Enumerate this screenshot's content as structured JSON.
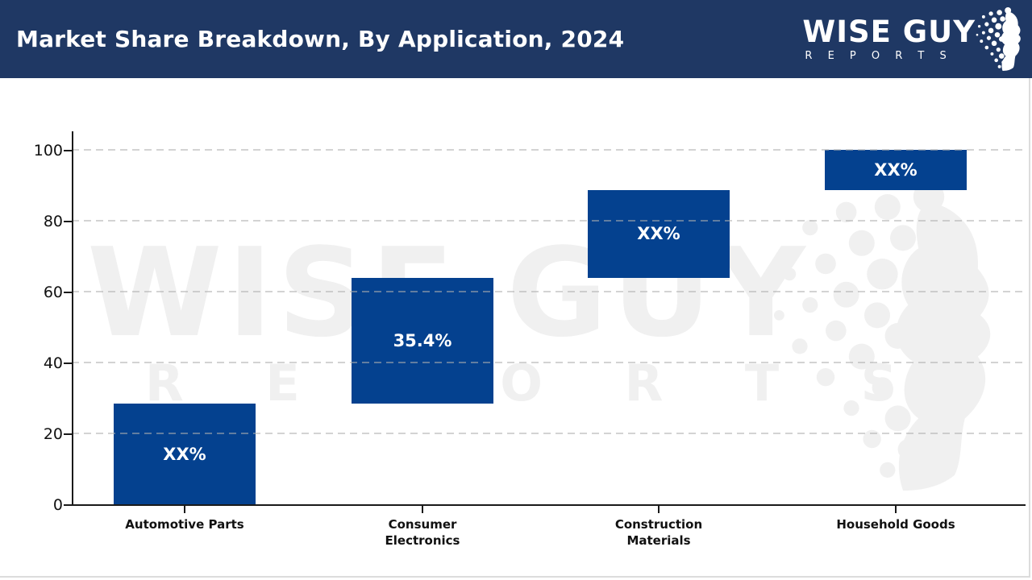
{
  "header": {
    "title": "Market Share Breakdown, By Application, 2024",
    "brand": {
      "line1": "WISE GUY",
      "line2": "R E P O R T S"
    }
  },
  "watermark": {
    "line1": "WISE GUY",
    "line2": "R E P O R T S"
  },
  "chart_data": {
    "type": "bar",
    "subtype": "waterfall-floating-bars",
    "title": "Market Share Breakdown, By Application, 2024",
    "xlabel": "",
    "ylabel": "",
    "ylim": [
      0,
      100
    ],
    "yticks": [
      0,
      20,
      40,
      60,
      80,
      100
    ],
    "grid": "horizontal dashed",
    "legend": "none",
    "categories": [
      "Automotive Parts",
      "Consumer Electronics",
      "Construction Materials",
      "Household Goods"
    ],
    "categories_display": [
      "Automotive Parts",
      "Consumer\nElectronics",
      "Construction\nMaterials",
      "Household Goods"
    ],
    "segments": [
      {
        "category": "Automotive Parts",
        "label": "XX%",
        "start": 0,
        "end": 28.4
      },
      {
        "category": "Consumer Electronics",
        "label": "35.4%",
        "start": 28.4,
        "end": 63.8
      },
      {
        "category": "Construction Materials",
        "label": "XX%",
        "start": 63.8,
        "end": 88.7
      },
      {
        "category": "Household Goods",
        "label": "XX%",
        "start": 88.7,
        "end": 100
      }
    ]
  },
  "colors": {
    "header_bg": "#1f3864",
    "header_text": "#ffffff",
    "bar": "#04418f",
    "bar_label": "#ffffff",
    "grid": "#d4d4d4",
    "axis": "#1a1a1a",
    "tick_text": "#111111",
    "watermark": "#f0f0f0"
  }
}
